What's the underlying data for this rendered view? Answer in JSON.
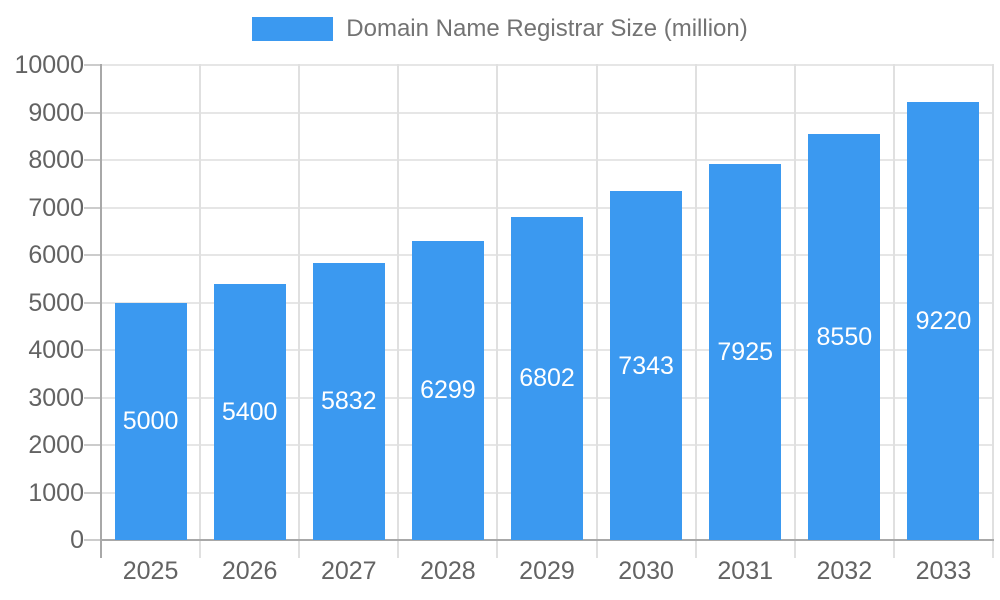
{
  "chart_data": {
    "type": "bar",
    "title": "",
    "legend": {
      "position": "top",
      "label": "Domain Name Registrar Size (million)"
    },
    "categories": [
      "2025",
      "2026",
      "2027",
      "2028",
      "2029",
      "2030",
      "2031",
      "2032",
      "2033"
    ],
    "series": [
      {
        "name": "Domain Name Registrar Size (million)",
        "values": [
          5000,
          5400,
          5832,
          6299,
          6802,
          7343,
          7925,
          8550,
          9220
        ]
      }
    ],
    "value_labels_shown": true,
    "xlabel": "",
    "ylabel": "",
    "ylim": [
      0,
      10000
    ],
    "ytick_step": 1000,
    "yticks": [
      0,
      1000,
      2000,
      3000,
      4000,
      5000,
      6000,
      7000,
      8000,
      9000,
      10000
    ],
    "grid": true,
    "colors": {
      "bar": "#3B99F0",
      "value_label": "#FFFFFF",
      "tick_label": "#636363",
      "legend_text": "#737373",
      "gridline": "#E6E6E6",
      "vertical_gridline": "#E0E0E0",
      "axis_line": "#A8A8A8",
      "tick_mark": "#CCCCCC",
      "background": "#FFFFFF"
    }
  }
}
